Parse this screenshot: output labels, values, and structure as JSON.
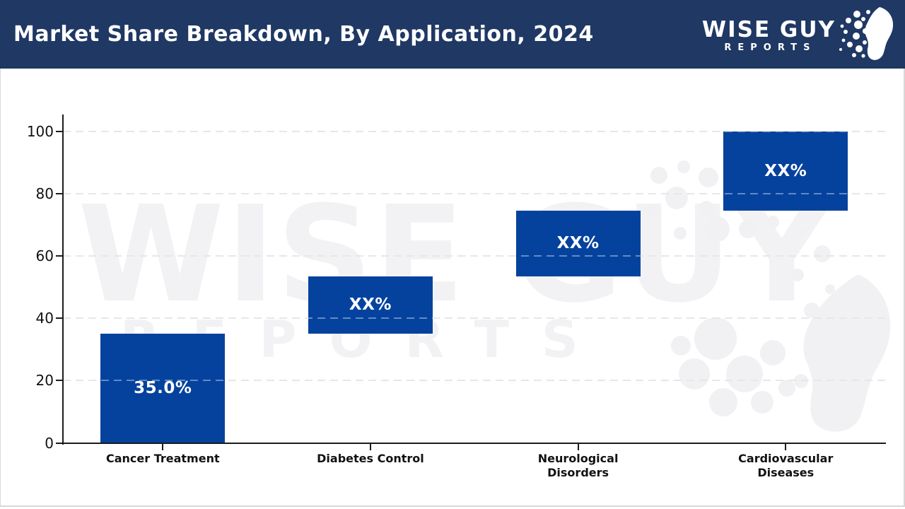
{
  "header": {
    "title": "Market Share Breakdown, By Application, 2024",
    "logo": {
      "line1": "WISE GUY",
      "line2": "REPORTS"
    }
  },
  "watermark": {
    "line1": "WISE GUY",
    "line2": "REPORTS"
  },
  "chart_data": {
    "type": "bar",
    "subtype": "waterfall-stacked-percentage",
    "title": "Market Share Breakdown, By Application, 2024",
    "categories": [
      "Cancer Treatment",
      "Diabetes Control",
      "Neurological\nDisorders",
      "Cardiovascular\nDiseases"
    ],
    "segments": [
      {
        "category": "Cancer Treatment",
        "start": 0,
        "end": 35,
        "label": "35.0%"
      },
      {
        "category": "Diabetes Control",
        "start": 35,
        "end": 53.5,
        "label": "XX%"
      },
      {
        "category": "Neurological Disorders",
        "start": 53.5,
        "end": 74.5,
        "label": "XX%"
      },
      {
        "category": "Cardiovascular Diseases",
        "start": 74.5,
        "end": 100,
        "label": "XX%"
      }
    ],
    "y_ticks": [
      0,
      20,
      40,
      60,
      80,
      100
    ],
    "ylim": [
      0,
      100
    ],
    "xlabel": "",
    "ylabel": "",
    "grid": "horizontal-dashed",
    "legend": "none",
    "bar_color": "#05429e",
    "bar_label_color": "#ffffff",
    "header_bg_color": "#1f3864",
    "gridline_color": "#d9d9d9"
  }
}
